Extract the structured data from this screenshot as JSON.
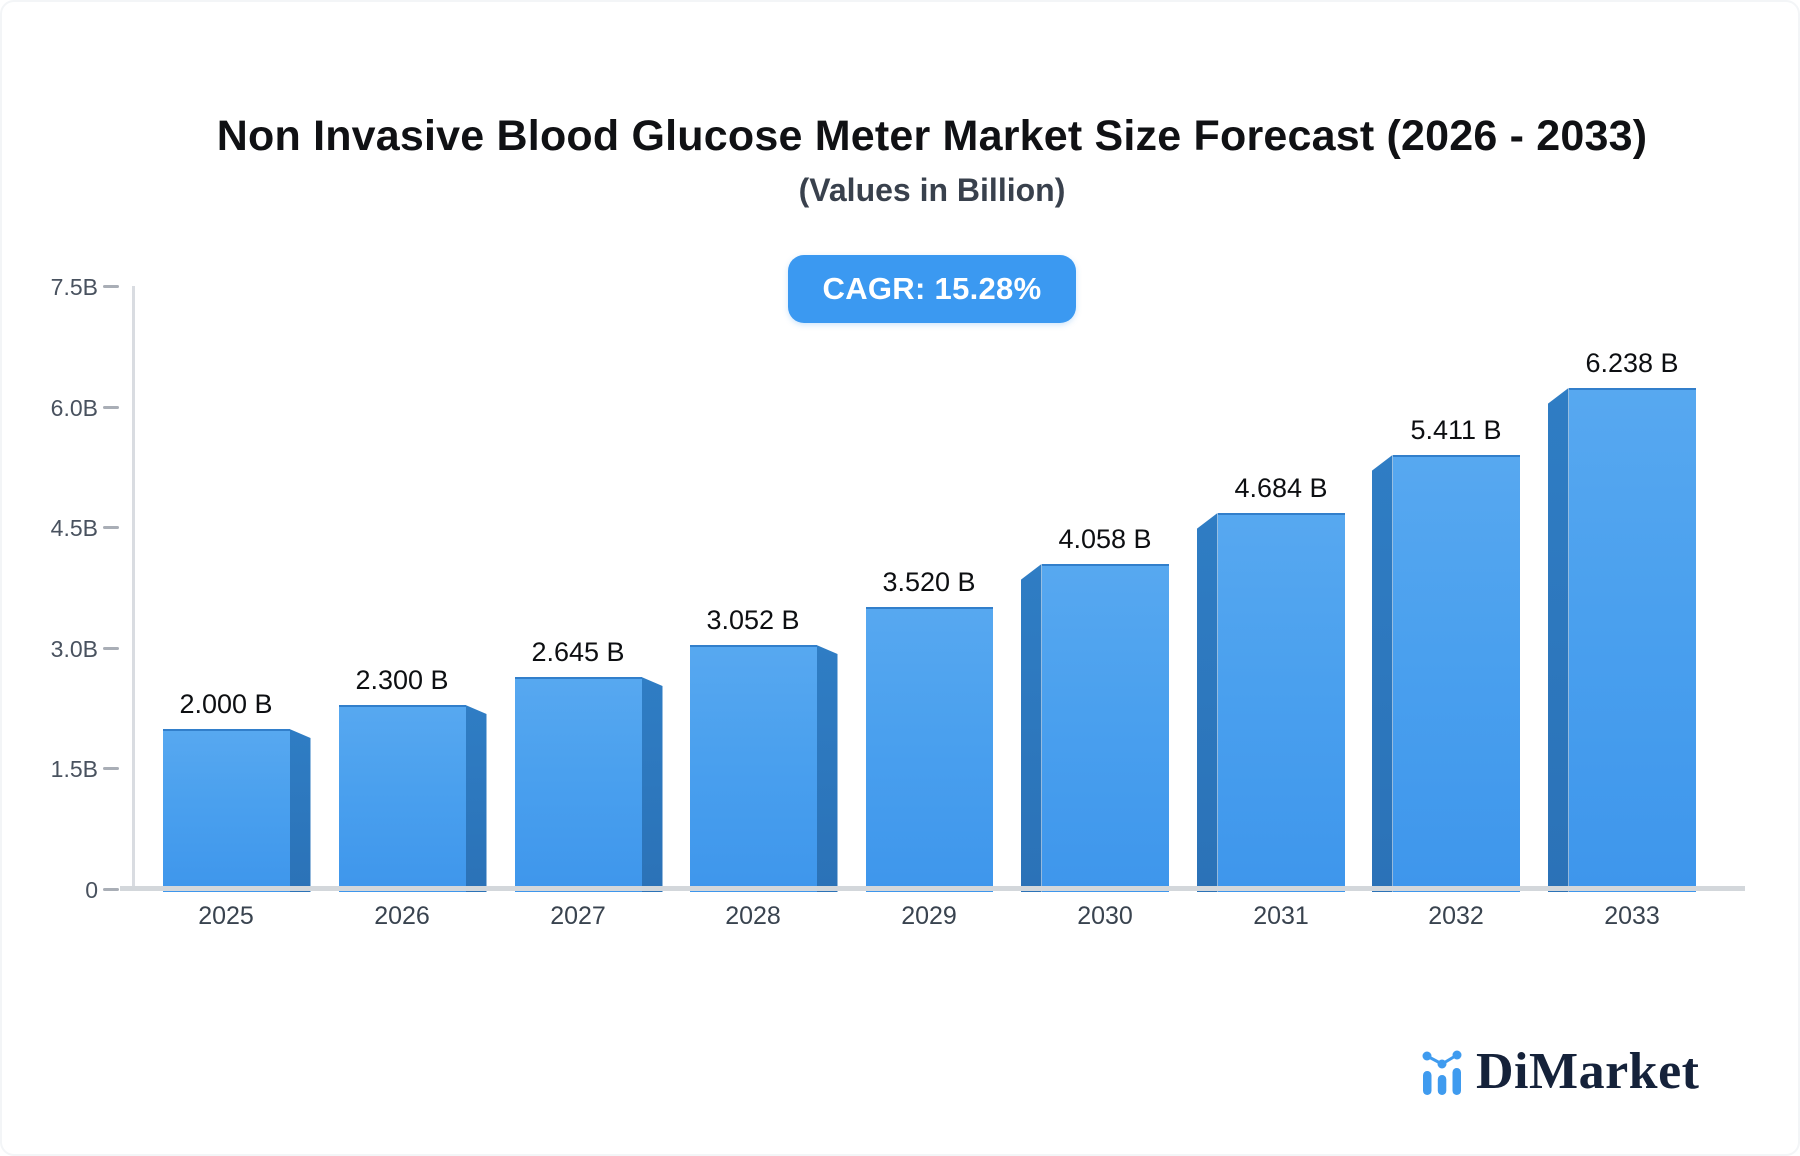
{
  "header": {
    "title": "Non Invasive Blood Glucose Meter Market Size Forecast (2026 - 2033)",
    "subtitle": "(Values in Billion)",
    "cagr_badge": "CAGR: 15.28%"
  },
  "chart_data": {
    "type": "bar",
    "title": "Non Invasive Blood Glucose Meter Market Size Forecast (2026 - 2033)",
    "subtitle": "(Values in Billion)",
    "categories": [
      "2025",
      "2026",
      "2027",
      "2028",
      "2029",
      "2030",
      "2031",
      "2032",
      "2033"
    ],
    "values": [
      2.0,
      2.3,
      2.645,
      3.052,
      3.52,
      4.058,
      4.684,
      5.411,
      6.238
    ],
    "value_labels": [
      "2.000 B",
      "2.300 B",
      "2.645 B",
      "3.052 B",
      "3.520 B",
      "4.058 B",
      "4.684 B",
      "5.411 B",
      "6.238 B"
    ],
    "unit": "Billion",
    "cagr_percent": 15.28,
    "ylim": [
      0,
      7.5
    ],
    "y_ticks": [
      {
        "value": 0.0,
        "label": "0"
      },
      {
        "value": 1.5,
        "label": "1.5B"
      },
      {
        "value": 3.0,
        "label": "3.0B"
      },
      {
        "value": 4.5,
        "label": "4.5B"
      },
      {
        "value": 6.0,
        "label": "6.0B"
      },
      {
        "value": 7.5,
        "label": "7.5B"
      }
    ],
    "grid": false,
    "legend": "none",
    "bar_style": "3d-perspective-blue"
  },
  "colors": {
    "bar_front_top": "#57a8f0",
    "bar_front_bottom": "#3e96ec",
    "bar_side": "#2e78bd",
    "badge_bg": "#3b99f1",
    "badge_text": "#ffffff",
    "axis_line": "#d9dce1",
    "tick_dash": "#a9aeb6",
    "y_tick_label": "#49525f",
    "x_cat_label": "#39434f",
    "value_label": "#0d0f12",
    "title_text": "#101114",
    "subtitle_text": "#39414d",
    "logo_navy": "#15223a",
    "logo_blue": "#3f9bef"
  },
  "logo": {
    "text": "DiMarket",
    "icon": "mini-bar-line-chart-icon"
  }
}
